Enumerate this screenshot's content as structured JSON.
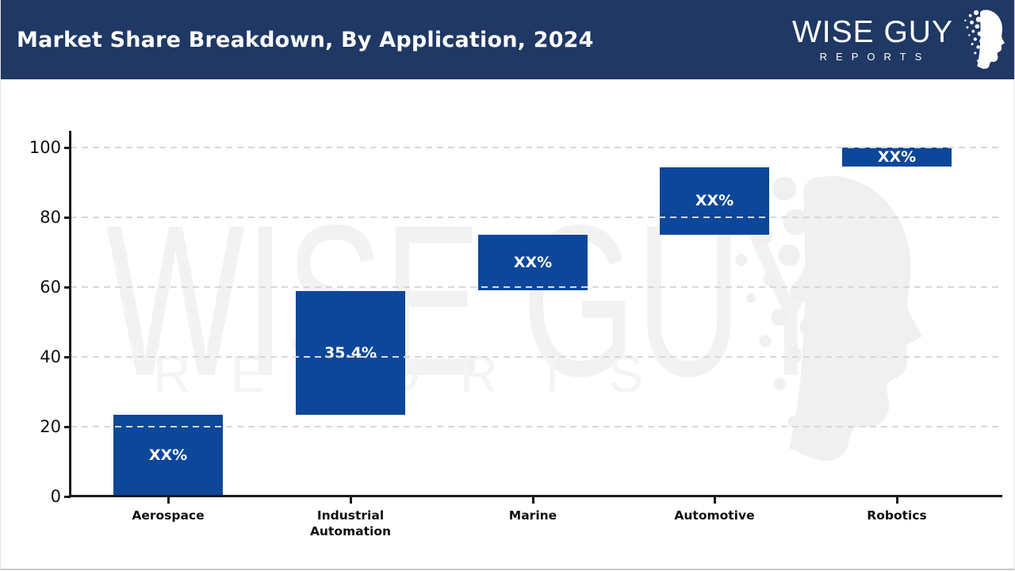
{
  "header": {
    "title": "Market Share Breakdown, By Application, 2024",
    "logo": {
      "line1": "WISE GUY",
      "line2": "REPORTS"
    }
  },
  "watermark": {
    "line1": "WISE GUY",
    "line2": "REPORTS"
  },
  "colors": {
    "header_bg": "#1f3864",
    "bar": "#0c4799",
    "gridline": "#d8d8d8",
    "axis": "#1a1a1a",
    "bar_label_text": "#ffffff",
    "watermark": "#f2f2f2"
  },
  "chart_data": {
    "type": "bar",
    "subtype": "waterfall",
    "title": "Market Share Breakdown, By Application, 2024",
    "categories": [
      "Aerospace",
      "Industrial Automation",
      "Marine",
      "Automotive",
      "Robotics"
    ],
    "bars": [
      {
        "category": "Aerospace",
        "start": 0,
        "end": 23.5,
        "label": "XX%"
      },
      {
        "category": "Industrial Automation",
        "start": 23.5,
        "end": 58.9,
        "label": "35.4%"
      },
      {
        "category": "Marine",
        "start": 59.0,
        "end": 74.9,
        "label": "XX%"
      },
      {
        "category": "Automotive",
        "start": 75.0,
        "end": 94.4,
        "label": "XX%"
      },
      {
        "category": "Robotics",
        "start": 94.5,
        "end": 100.0,
        "label": "XX%"
      }
    ],
    "xlabel": "",
    "ylabel": "",
    "ylim": [
      0,
      100
    ],
    "yticks": [
      0,
      20,
      40,
      60,
      80,
      100
    ],
    "grid": "horizontal-dashed-over-bars",
    "legend": "none"
  }
}
